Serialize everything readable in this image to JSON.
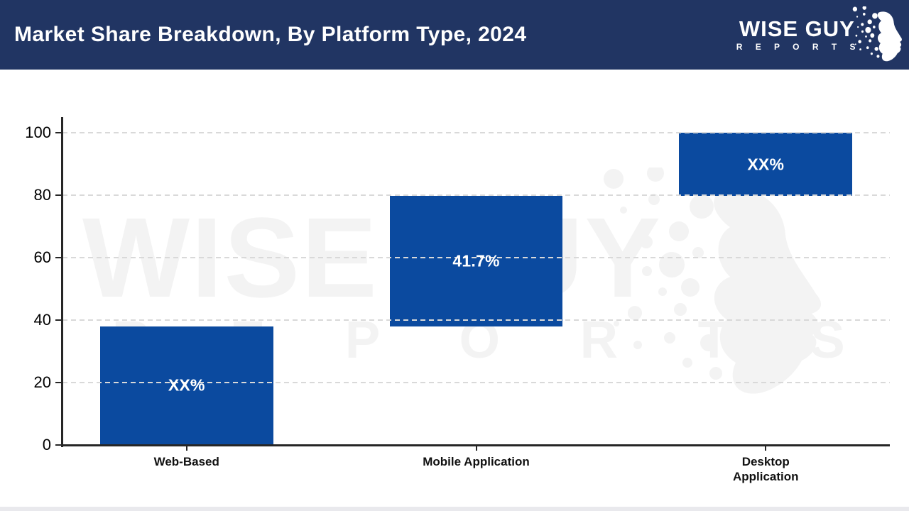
{
  "header": {
    "title": "Market Share Breakdown, By Platform Type, 2024",
    "logo": {
      "line1": "WISE GUY",
      "line2": "R E P O R T S"
    }
  },
  "watermark": {
    "line1": "WISE GUY",
    "line2": "R E P O R T S"
  },
  "chart_data": {
    "type": "bar",
    "subtype": "stacked-waterfall-segments",
    "title": "Market Share Breakdown, By Platform Type, 2024",
    "categories": [
      "Web-Based",
      "Mobile Application",
      "Desktop Application"
    ],
    "xlabels": [
      "Web-Based",
      "Mobile Application",
      "Desktop\nApplication"
    ],
    "segments": [
      {
        "category": "Web-Based",
        "base": 0,
        "top": 38,
        "value": 38,
        "label": "XX%",
        "value_masked": true
      },
      {
        "category": "Mobile Application",
        "base": 38,
        "top": 79.7,
        "value": 41.7,
        "label": "41.7%",
        "value_masked": false
      },
      {
        "category": "Desktop Application",
        "base": 79.7,
        "top": 100,
        "value": 20.3,
        "label": "XX%",
        "value_masked": true
      }
    ],
    "yticks": [
      0,
      20,
      40,
      60,
      80,
      100
    ],
    "ylim": [
      0,
      100
    ],
    "xlabel": "",
    "ylabel": "",
    "grid": "horizontal-dashed",
    "legend": "none",
    "bar_color": "#0B4A9F",
    "bar_label_color": "#ffffff"
  },
  "colors": {
    "header_bg": "#213563",
    "title_text": "#ffffff",
    "bar": "#0B4A9F",
    "grid": "#d9d9d9",
    "axis": "#262626",
    "watermark": "#f3f3f3",
    "bottom_strip": "#e9e9ed"
  }
}
